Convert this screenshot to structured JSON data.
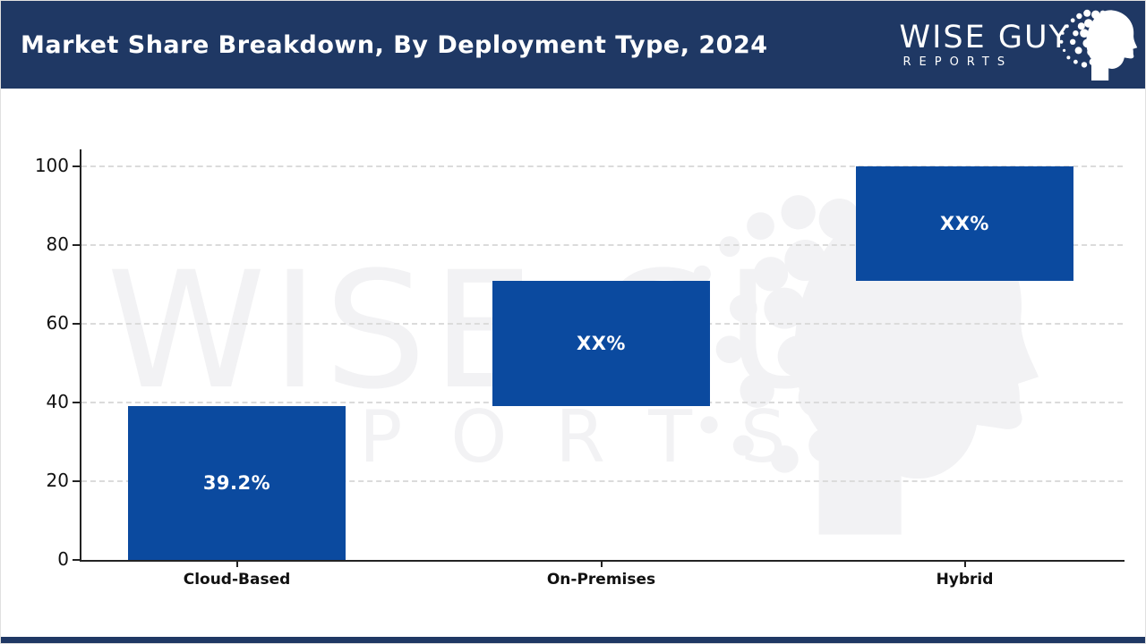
{
  "header": {
    "title": "Market Share Breakdown, By Deployment Type, 2024",
    "logo": {
      "line1": "WISE GUY",
      "line2": "REPORTS"
    }
  },
  "watermark": {
    "line1": "WISE GUY",
    "line2": "REPORTS"
  },
  "chart_data": {
    "type": "bar",
    "subtype": "floating-waterfall",
    "title": "Market Share Breakdown, By Deployment Type, 2024",
    "categories": [
      "Cloud-Based",
      "On-Premises",
      "Hybrid"
    ],
    "series": [
      {
        "name": "Market share by deployment type",
        "segments": [
          {
            "category": "Cloud-Based",
            "start": 0,
            "end": 39.2,
            "label": "39.2%"
          },
          {
            "category": "On-Premises",
            "start": 39.2,
            "end": 71,
            "label": "XX%"
          },
          {
            "category": "Hybrid",
            "start": 71,
            "end": 100,
            "label": "XX%"
          }
        ]
      }
    ],
    "xlabel": "",
    "ylabel": "",
    "yticks": [
      0,
      20,
      40,
      60,
      80,
      100
    ],
    "ylim": [
      0,
      104
    ],
    "grid": "horizontal-dashed",
    "legend": "none"
  },
  "colors": {
    "header_bg": "#1F3864",
    "footer_bg": "#1F3864",
    "bar": "#0B4A9F",
    "bar_label": "#FFFFFF",
    "gridline": "#DBDBDB",
    "axis": "#232323",
    "watermark": "#F2F2F4"
  }
}
